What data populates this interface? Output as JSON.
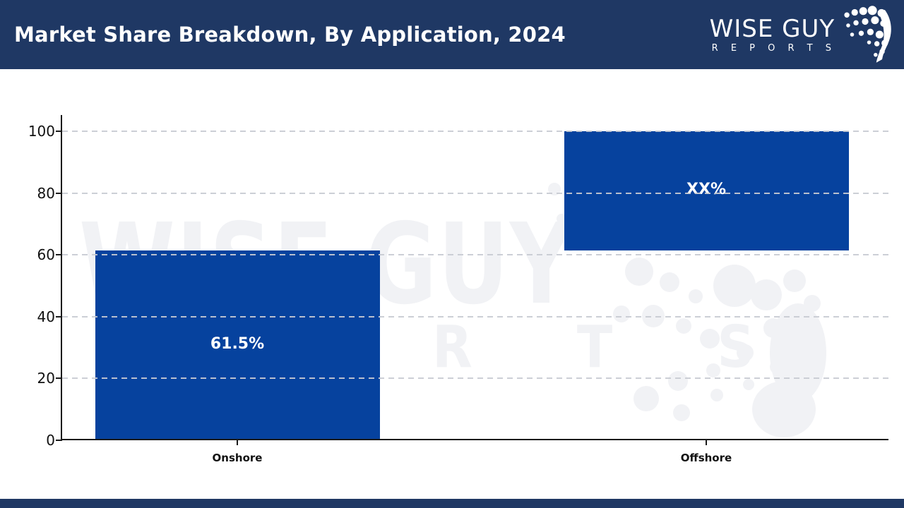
{
  "header": {
    "title": "Market Share Breakdown, By Application, 2024",
    "logo": {
      "wordmark": "WISE GUY",
      "subtext": "R E P O R T S"
    }
  },
  "watermark": {
    "line1": "WISE GUY",
    "line2": "R T S"
  },
  "colors": {
    "header_bg": "#1F3864",
    "footer_bg": "#1F3864",
    "bar": "#06429E",
    "gridline": "#D6D8DC",
    "watermark": "#F1F2F5",
    "axis_text": "#111111",
    "value_label": "#FFFFFF"
  },
  "chart_data": {
    "type": "bar",
    "title": "Market Share Breakdown, By Application, 2024",
    "categories": [
      "Onshore",
      "Offshore"
    ],
    "bars": [
      {
        "category": "Onshore",
        "start": 0,
        "end": 61.5,
        "label": "61.5%"
      },
      {
        "category": "Offshore",
        "start": 61.5,
        "end": 100,
        "label": "XX%"
      }
    ],
    "yticks": [
      0,
      20,
      40,
      60,
      80,
      100
    ],
    "ylim": [
      0,
      105
    ],
    "xlabel": "",
    "ylabel": "",
    "grid": "horizontal-dashed",
    "legend": null
  }
}
